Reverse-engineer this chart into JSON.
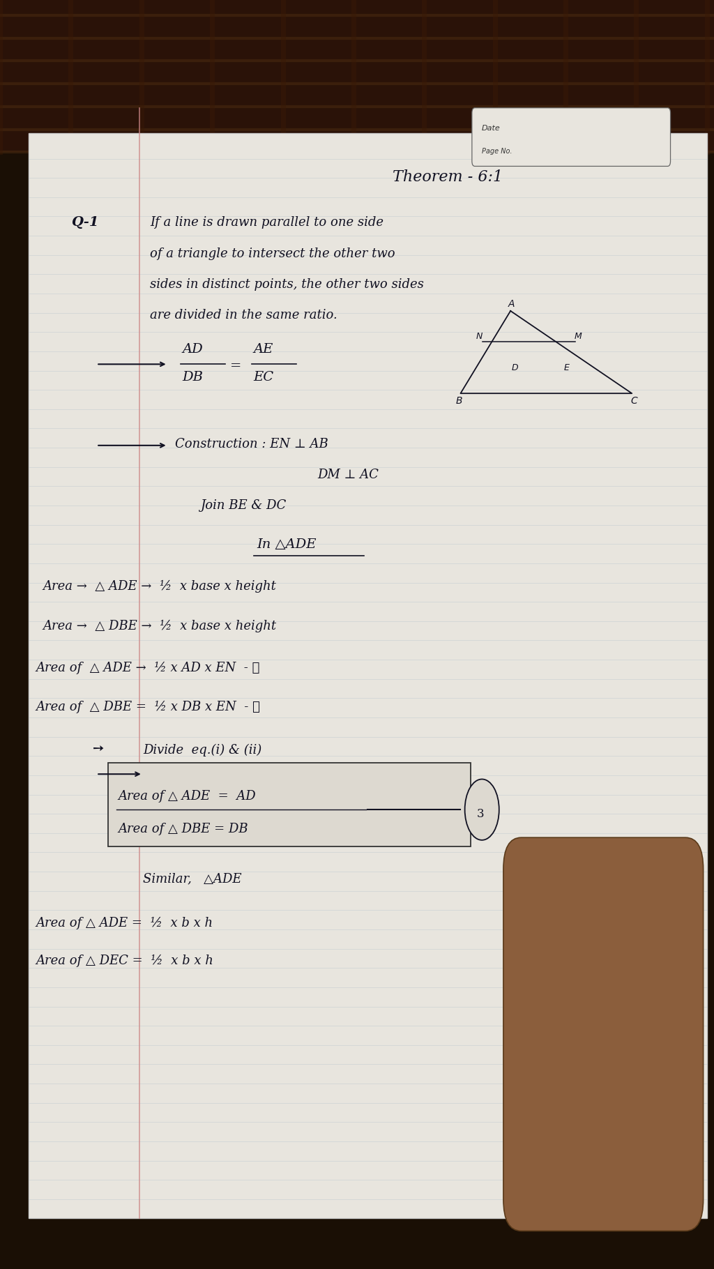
{
  "bg_dark": "#1a0f05",
  "carpet_color": "#2a1208",
  "page_color": "#e8e5de",
  "line_color": "#b8c4cc",
  "margin_color": "#cc8888",
  "text_color": "#111122",
  "title": "Theorem - 6:1",
  "date_label": "Date",
  "page_label": "Page No.",
  "thumb_color": "#8B5E3C",
  "thumb_edge": "#5a3a1a"
}
